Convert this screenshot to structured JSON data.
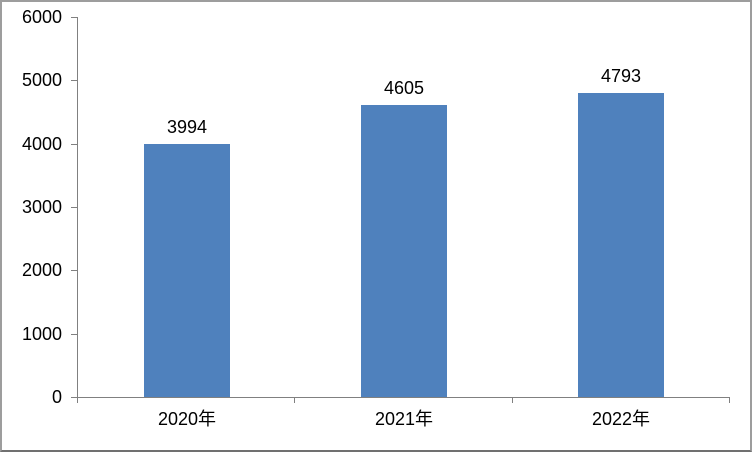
{
  "chart_data": {
    "type": "bar",
    "title": "",
    "xlabel": "",
    "ylabel": "",
    "categories": [
      "2020年",
      "2021年",
      "2022年"
    ],
    "values": [
      3994,
      4605,
      4793
    ],
    "data_labels": [
      "3994",
      "4605",
      "4793"
    ],
    "yticks": [
      "0",
      "1000",
      "2000",
      "3000",
      "4000",
      "5000",
      "6000"
    ],
    "ylim": [
      0,
      6000
    ],
    "grid": "off",
    "legend": "none",
    "colors": {
      "bar": "#4F81BD",
      "axis": "#808080",
      "text": "#000000",
      "frame_border": "#9D9D9D",
      "background": "#FFFFFF"
    }
  }
}
